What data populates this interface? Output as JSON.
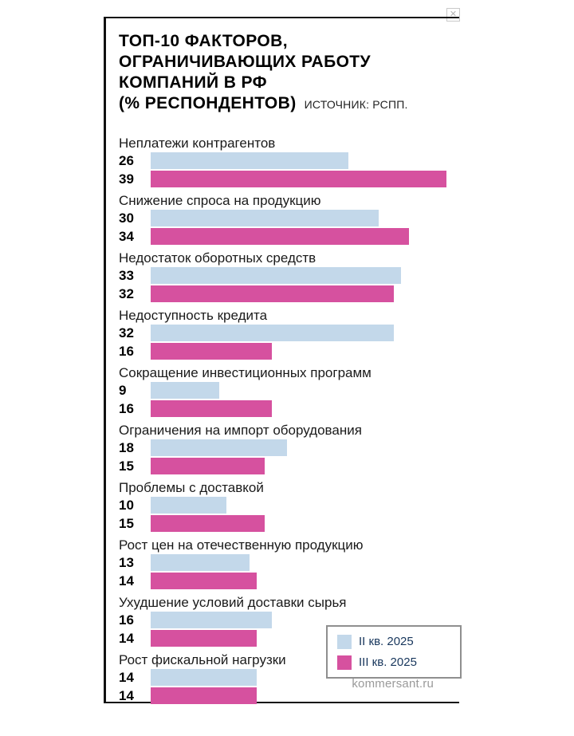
{
  "header": {
    "title_lines": [
      "ТОП-10 ФАКТОРОВ,",
      "ОГРАНИЧИВАЮЩИХ РАБОТУ",
      "КОМПАНИЙ В РФ",
      "(% РЕСПОНДЕНТОВ)"
    ],
    "source": "ИСТОЧНИК: РСПП."
  },
  "chart_data": {
    "type": "bar",
    "orientation": "horizontal",
    "title": "ТОП-10 ФАКТОРОВ, ОГРАНИЧИВАЮЩИХ РАБОТУ КОМПАНИЙ В РФ (% РЕСПОНДЕНТОВ)",
    "source": "ИСТОЧНИК: РСПП.",
    "categories": [
      "Неплатежи контрагентов",
      "Снижение спроса на продукцию",
      "Недостаток оборотных средств",
      "Недоступность кредита",
      "Сокращение инвестиционных программ",
      "Ограничения на импорт оборудования",
      "Проблемы с доставкой",
      "Рост цен на отечественную продукцию",
      "Ухудшение условий доставки сырья",
      "Рост фискальной нагрузки"
    ],
    "series": [
      {
        "name": "II кв. 2025",
        "color": "#c3d8ea",
        "values": [
          26,
          30,
          33,
          32,
          9,
          18,
          10,
          13,
          16,
          14
        ]
      },
      {
        "name": "III кв. 2025",
        "color": "#d6519f",
        "values": [
          39,
          34,
          32,
          16,
          16,
          15,
          15,
          14,
          14,
          14
        ]
      }
    ],
    "xlim": [
      0,
      40
    ],
    "value_labels": true,
    "grid": false,
    "legend_position": "bottom-right"
  },
  "footer": {
    "site": "kommersant.ru"
  },
  "window": {
    "close_icon": "✕"
  }
}
